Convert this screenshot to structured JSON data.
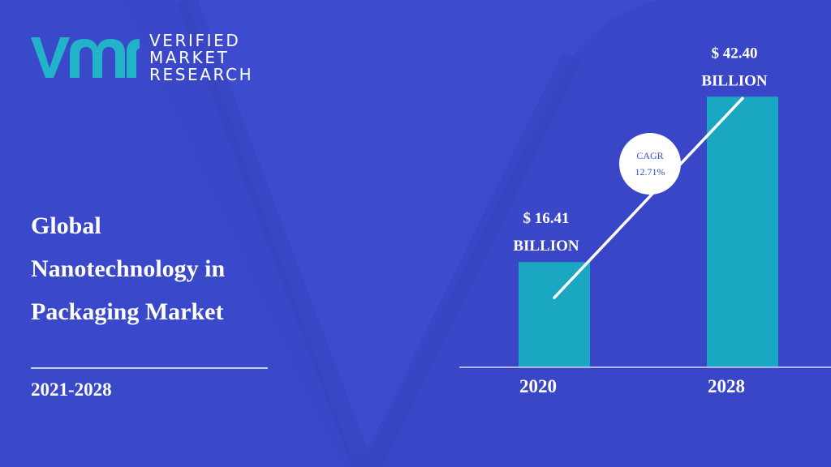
{
  "brand": {
    "line1": "VERIFIED",
    "line2": "MARKET",
    "line3": "RESEARCH",
    "accent": "#21b3c8",
    "background": "#3d4bcf"
  },
  "title": {
    "line1": "Global",
    "line2": "Nanotechnology in",
    "line3": "Packaging Market"
  },
  "period": "2021-2028",
  "chart_data": {
    "type": "bar",
    "categories": [
      "2020",
      "2028"
    ],
    "values": [
      16.41,
      42.4
    ],
    "value_labels": [
      {
        "amount": "$ 16.41",
        "unit": "BILLION"
      },
      {
        "amount": "$ 42.40",
        "unit": "BILLION"
      }
    ],
    "cagr_label": "CAGR",
    "cagr_value": "12.71%",
    "bar_color": "#1aa7c2",
    "ylim": [
      0,
      52.5
    ]
  }
}
